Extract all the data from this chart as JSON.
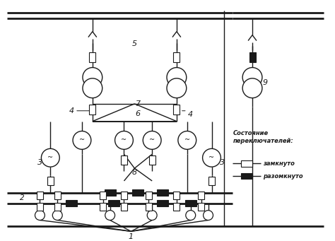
{
  "bg_color": "#ffffff",
  "line_color": "#1a1a1a",
  "fig_width": 4.74,
  "fig_height": 3.41,
  "dpi": 100,
  "legend_title": "Состояние\nпереключателей:",
  "legend_closed": "замкнуто",
  "legend_open": "разомкнуто"
}
